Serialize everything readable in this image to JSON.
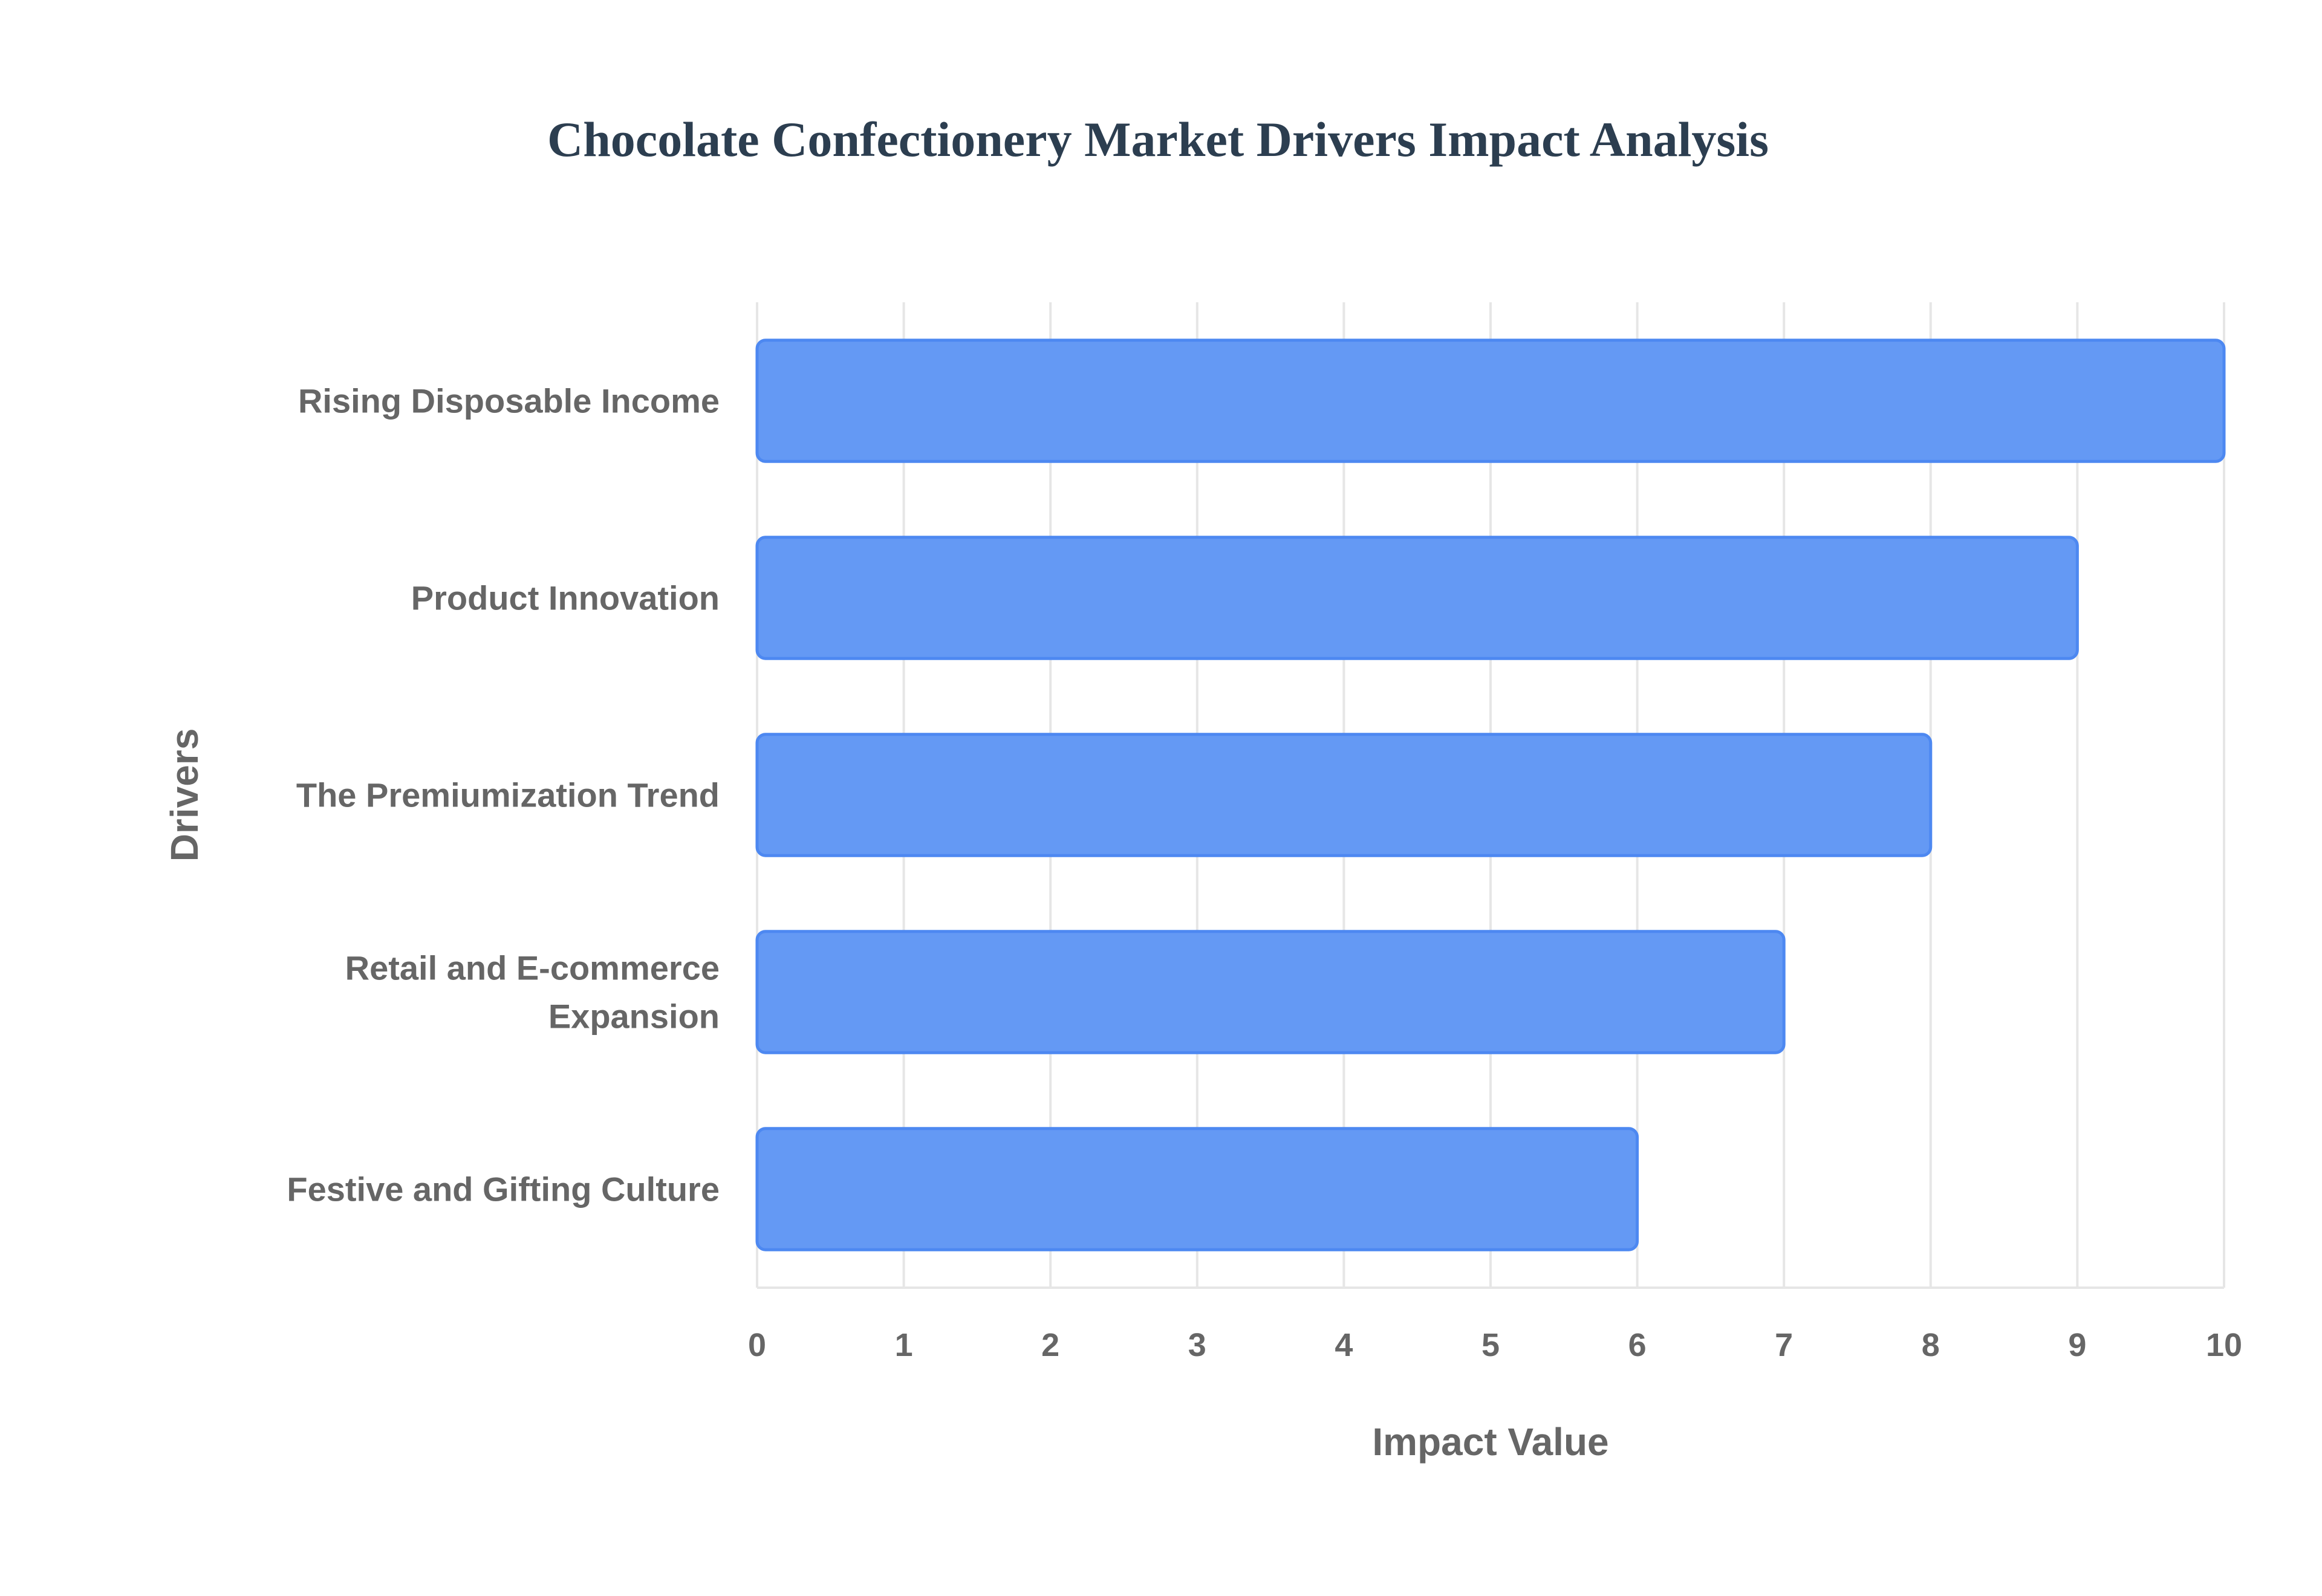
{
  "chart_data": {
    "type": "bar",
    "orientation": "horizontal",
    "title": "Chocolate Confectionery Market Drivers Impact Analysis",
    "xlabel": "Impact Value",
    "ylabel": "Drivers",
    "categories": [
      [
        "Rising Disposable Income"
      ],
      [
        "Product Innovation"
      ],
      [
        "The Premiumization Trend"
      ],
      [
        "Retail and E-commerce",
        "Expansion"
      ],
      [
        "Festive and Gifting Culture"
      ]
    ],
    "values": [
      10,
      9,
      8,
      7,
      6
    ],
    "xlim": [
      0,
      10
    ],
    "xticks": [
      "0",
      "1",
      "2",
      "3",
      "4",
      "5",
      "6",
      "7",
      "8",
      "9",
      "10"
    ],
    "grid": true,
    "legend": "none"
  },
  "colors": {
    "bar_fill": "#6499f4",
    "bar_stroke": "#4d88f1",
    "title": "#2c3e50",
    "text": "#666666",
    "grid": "#e6e6e6"
  }
}
